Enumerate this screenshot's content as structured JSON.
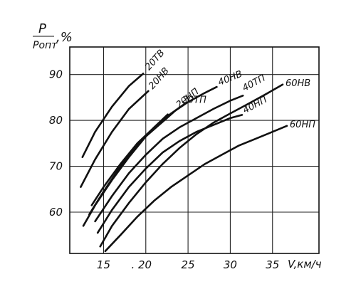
{
  "chart_data": {
    "type": "line",
    "ylabel_top": "P",
    "ylabel_bottom": "Pопт",
    "ylabel_suffix": ",%",
    "xlabel": "V,км/ч",
    "xticks": [
      15,
      20,
      25,
      30,
      35
    ],
    "xtick_labels": [
      "15",
      ". 20",
      "25",
      "30",
      "35"
    ],
    "yticks": [
      60,
      70,
      80,
      90
    ],
    "xlim": [
      11,
      40.5
    ],
    "ylim": [
      51,
      96
    ],
    "grid": true,
    "series": [
      {
        "name": "20ТВ",
        "x": [
          12.5,
          14,
          16,
          18,
          19.7
        ],
        "y": [
          72,
          77.5,
          83,
          87.5,
          90.2
        ]
      },
      {
        "name": "20НВ",
        "x": [
          12.3,
          14,
          16,
          18,
          20.3
        ],
        "y": [
          65.5,
          71.5,
          77.5,
          82.5,
          86.4
        ]
      },
      {
        "name": "20ТП",
        "x": [
          13.3,
          15,
          17,
          19,
          21,
          22.6
        ],
        "y": [
          59.5,
          64.5,
          70,
          74.5,
          78.5,
          81.3
        ]
      },
      {
        "name": "20НП",
        "x": [
          12.6,
          14,
          16,
          18,
          20,
          22.5,
          23.6
        ],
        "y": [
          57,
          61.5,
          67,
          72,
          76.5,
          80.5,
          82.3
        ]
      },
      {
        "name": "40НВ",
        "x": [
          13.6,
          15,
          17,
          19,
          21,
          23,
          25,
          27,
          28.4
        ],
        "y": [
          61.5,
          65.5,
          70.5,
          75,
          78.5,
          81.5,
          84,
          86,
          87.3
        ]
      },
      {
        "name": "40ТП",
        "x": [
          14,
          16,
          18,
          20,
          22,
          24,
          26,
          28,
          30,
          31.5
        ],
        "y": [
          58,
          63.5,
          68.5,
          72.5,
          76,
          78.5,
          80.5,
          82.5,
          84.3,
          85.4
        ]
      },
      {
        "name": "40НП",
        "x": [
          14.3,
          16,
          18,
          20,
          22,
          24,
          26,
          28,
          30,
          31.4
        ],
        "y": [
          55.5,
          60.5,
          65.5,
          69.5,
          73,
          75.5,
          77.5,
          79,
          80.5,
          81.2
        ]
      },
      {
        "name": "60НВ",
        "x": [
          14.6,
          16,
          18,
          20,
          22,
          24,
          26,
          28,
          30,
          32,
          34,
          36.2
        ],
        "y": [
          52.5,
          57,
          62,
          66.5,
          70.5,
          74,
          77,
          79.5,
          81.5,
          83.5,
          85.5,
          87.8
        ]
      },
      {
        "name": "60НП",
        "x": [
          15.2,
          17,
          19,
          21,
          23,
          25,
          27,
          29,
          31,
          33,
          35,
          36.7
        ],
        "y": [
          51.5,
          55,
          59,
          62.5,
          65.5,
          68,
          70.5,
          72.5,
          74.5,
          76,
          77.5,
          78.8
        ]
      }
    ]
  }
}
